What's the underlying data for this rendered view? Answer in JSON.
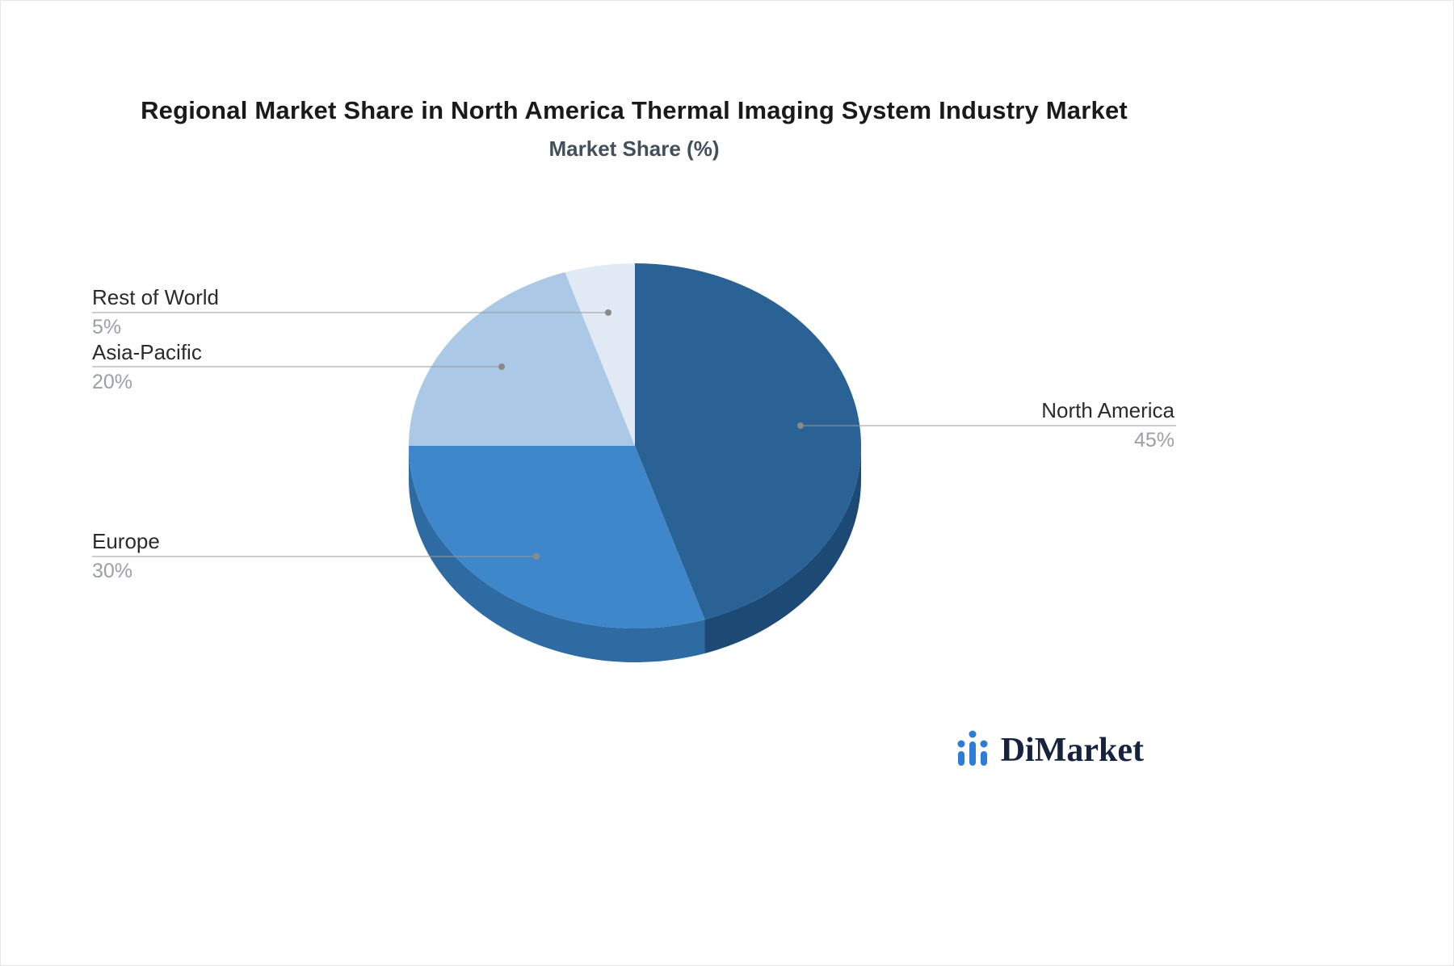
{
  "chart_data": {
    "type": "pie",
    "title": "Regional Market Share in North America Thermal Imaging System Industry Market",
    "subtitle": "Market Share (%)",
    "unit": "%",
    "effect": "3d",
    "direction": "clockwise",
    "start_angle_deg": 0,
    "labels_outside": true,
    "legend": "none",
    "slices": [
      {
        "label": "North America",
        "value": 45,
        "display": "45%",
        "color": "#2a6295",
        "side_color": "#1d4a74"
      },
      {
        "label": "Europe",
        "value": 30,
        "display": "30%",
        "color": "#3e87ca",
        "side_color": "#2f6ba3"
      },
      {
        "label": "Asia-Pacific",
        "value": 20,
        "display": "20%",
        "color": "#abc9e6",
        "side_color": "#8fb4d9"
      },
      {
        "label": "Rest of World",
        "value": 5,
        "display": "5%",
        "color": "#e0e9f4",
        "side_color": "#c4d3e6"
      }
    ],
    "colors": {
      "leader_line": "#9b9b9b",
      "leader_dot": "#8a8a8a",
      "label_text": "#2b2b2b",
      "percent_text": "#9aa0a6"
    }
  },
  "logo": {
    "text": "DiMarket",
    "icon": "bar-chart-icon",
    "icon_color": "#2e7cd6",
    "text_color": "#15233f"
  }
}
